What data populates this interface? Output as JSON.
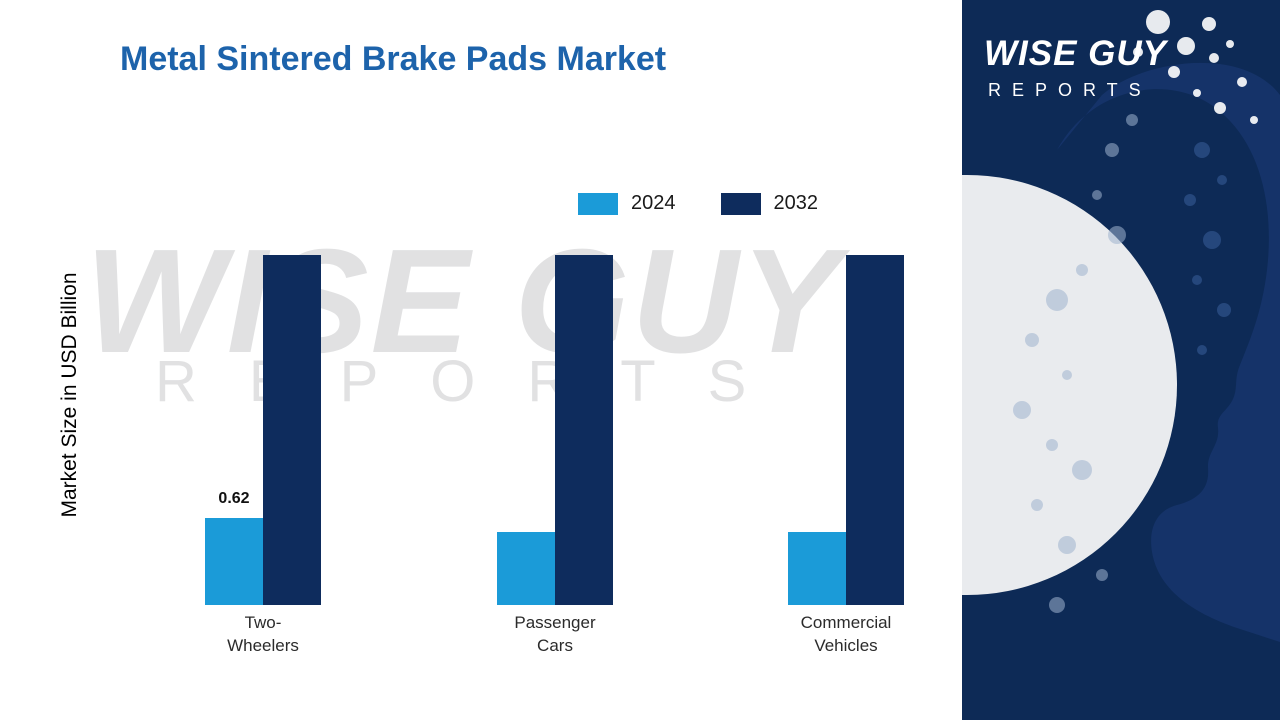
{
  "title": "Metal Sintered Brake Pads Market",
  "brand": {
    "name_line1": "WISE GUY",
    "name_line2": "REPORTS"
  },
  "watermark": {
    "line1": "WISE GUY",
    "line2": "REPORTS"
  },
  "chart_data": {
    "type": "bar",
    "title": "Metal Sintered Brake Pads Market",
    "ylabel": "Market Size in USD Billion",
    "categories": [
      "Two-Wheelers",
      "Passenger Cars",
      "Commercial Vehicles"
    ],
    "category_label_lines": [
      [
        "Two-",
        "Wheelers"
      ],
      [
        "Passenger",
        "Cars"
      ],
      [
        "Commercial",
        "Vehicles"
      ]
    ],
    "series": [
      {
        "name": "2024",
        "color": "#1b9bd8",
        "values": [
          0.62,
          0.52,
          0.52
        ]
      },
      {
        "name": "2032",
        "color": "#0e2c5d",
        "values": [
          2.5,
          2.5,
          2.5
        ]
      }
    ],
    "data_labels": [
      {
        "series_index": 0,
        "category_index": 0,
        "text": "0.62"
      }
    ],
    "ylim": [
      0,
      2.5
    ],
    "legend_position": "top-right",
    "grid": false
  },
  "colors": {
    "title_blue": "#1d63ab",
    "panel_navy": "#0d2a56",
    "bar_2024": "#1b9bd8",
    "bar_2032": "#0e2c5d",
    "watermark_gray": "#c9cacc"
  }
}
